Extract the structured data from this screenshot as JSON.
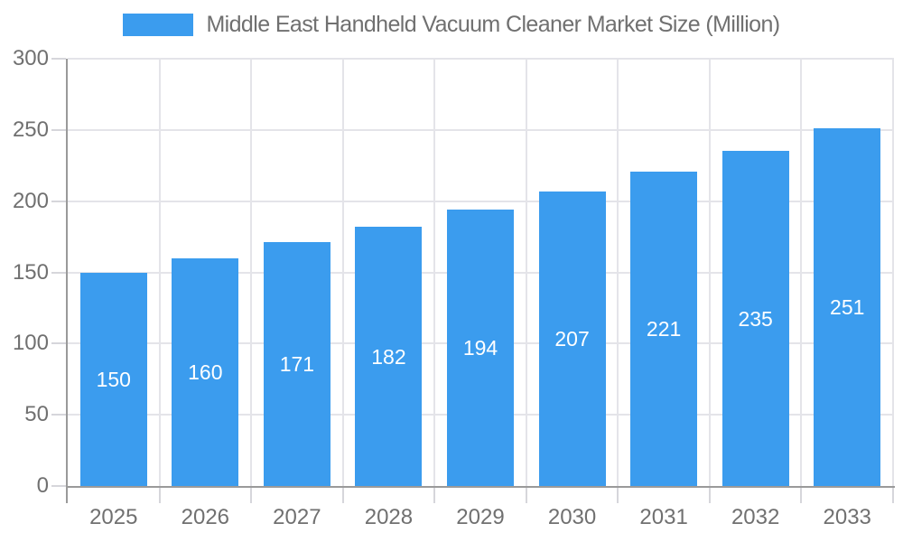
{
  "chart_data": {
    "type": "bar",
    "title": "Middle East Handheld Vacuum Cleaner Market Size (Million)",
    "legend": {
      "position": "top",
      "items": [
        {
          "label": "Middle East Handheld Vacuum Cleaner Market Size (Million)",
          "swatch": "blue-rect"
        }
      ]
    },
    "categories": [
      "2025",
      "2026",
      "2027",
      "2028",
      "2029",
      "2030",
      "2031",
      "2032",
      "2033"
    ],
    "series": [
      {
        "name": "Middle East Handheld Vacuum Cleaner Market Size (Million)",
        "values": [
          150,
          160,
          171,
          182,
          194,
          207,
          221,
          235,
          251
        ]
      }
    ],
    "bar_value_labels": [
      "150",
      "160",
      "171",
      "182",
      "194",
      "207",
      "221",
      "235",
      "251"
    ],
    "value_label_position": "inside-center",
    "xlabel": "",
    "ylabel": "",
    "ylim": [
      0,
      300
    ],
    "ytick_step": 50,
    "yticks": [
      0,
      50,
      100,
      150,
      200,
      250,
      300
    ],
    "grid": true,
    "colors": {
      "bar": "#3b9cee",
      "value_label": "#ffffff",
      "axis_text": "#707070",
      "title_text": "#707070",
      "axis_line": "#9a9a9a",
      "gridline": "#e4e4e9",
      "tick": "#d6d6db",
      "background": "#ffffff"
    }
  }
}
